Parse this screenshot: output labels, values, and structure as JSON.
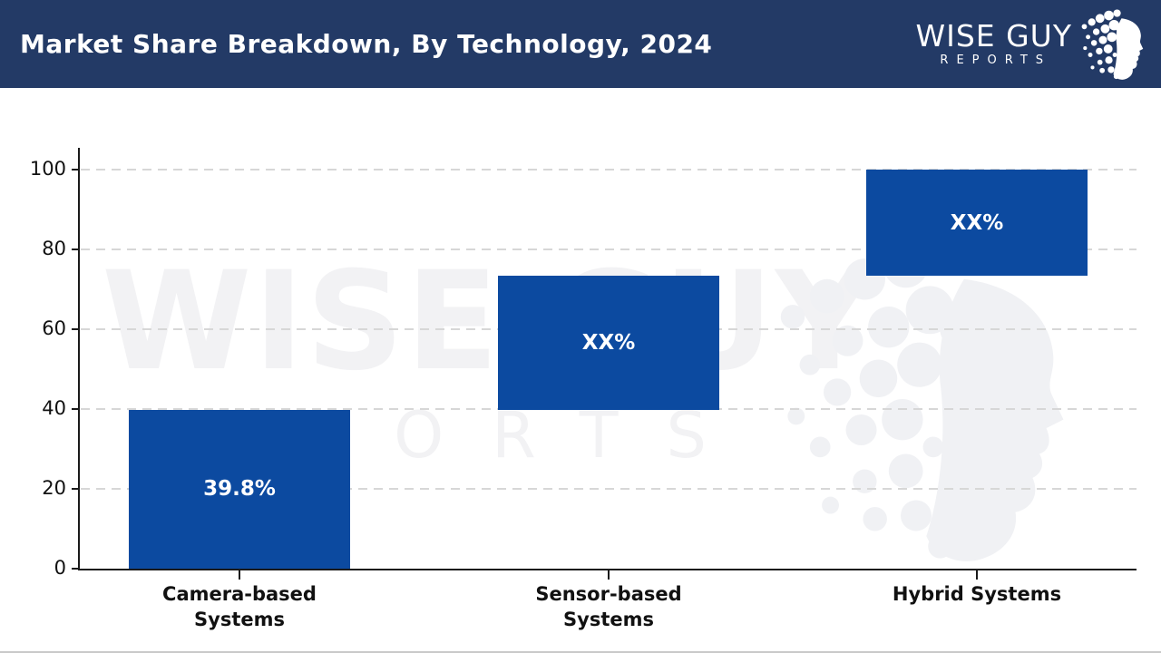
{
  "header": {
    "title": "Market Share Breakdown, By Technology, 2024",
    "logo": {
      "name": "WISE GUY",
      "tagline": "REPORTS"
    }
  },
  "watermark": {
    "line1": "WISE GUY",
    "line2": "REPORTS"
  },
  "chart_data": {
    "type": "bar",
    "subtype": "floating-waterfall",
    "title": "Market Share Breakdown, By Technology, 2024",
    "categories": [
      {
        "line1": "Camera-based",
        "line2": "Systems"
      },
      {
        "line1": "Sensor-based",
        "line2": "Systems"
      },
      {
        "line1": "Hybrid Systems",
        "line2": ""
      }
    ],
    "segments": [
      {
        "category": "Camera-based Systems",
        "start": 0,
        "end": 39.8,
        "label": "39.8%"
      },
      {
        "category": "Sensor-based Systems",
        "start": 39.8,
        "end": 73.4,
        "label": "XX%"
      },
      {
        "category": "Hybrid Systems",
        "start": 73.4,
        "end": 100,
        "label": "XX%"
      }
    ],
    "xlabel": "",
    "ylabel": "",
    "yticks": [
      0,
      20,
      40,
      60,
      80,
      100
    ],
    "ylim": [
      0,
      105.5
    ],
    "grid": "horizontal-dashed",
    "legend": "none",
    "bar_color": "#0c4aa0",
    "label_color": "#ffffff"
  },
  "colors": {
    "header_bg": "#233a66",
    "bar": "#0c4aa0",
    "gridline": "#d7d7d7",
    "axis": "#1a1a1a",
    "watermark": "#f2f2f4",
    "bottom_line": "#c9c9c9"
  }
}
